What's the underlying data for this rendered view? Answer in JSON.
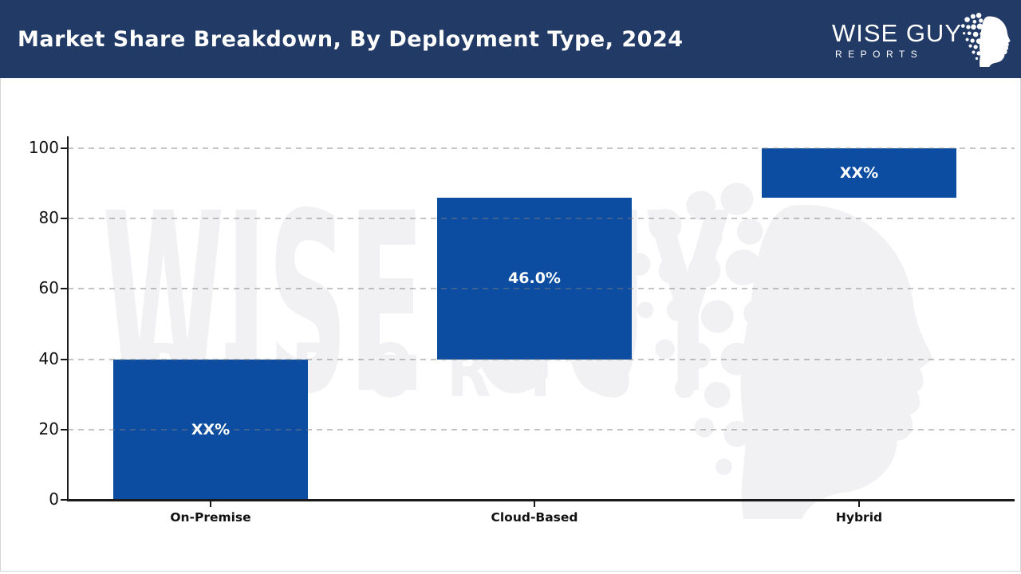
{
  "header": {
    "title": "Market Share Breakdown, By Deployment Type, 2024",
    "logo": {
      "line1": "WISE GUY",
      "line2": "REPORTS"
    }
  },
  "watermark": {
    "line1": "WISE GUY",
    "line2": "REPORTS"
  },
  "colors": {
    "header_bg": "#223a66",
    "bar_fill": "#0c4da1",
    "bar_label_text": "#ffffff",
    "axis": "#1a1a1a",
    "gridline": "#c9c9c9",
    "watermark": "#f1f1f4"
  },
  "chart_data": {
    "type": "bar",
    "subtype": "segmented-waterfall",
    "title": "Market Share Breakdown, By Deployment Type, 2024",
    "categories": [
      "On-Premise",
      "Cloud-Based",
      "Hybrid"
    ],
    "series": [
      {
        "name": "Market Share (%)",
        "segments": [
          {
            "category": "On-Premise",
            "start": 0,
            "end": 40,
            "value": 40,
            "label": "XX%"
          },
          {
            "category": "Cloud-Based",
            "start": 40,
            "end": 86,
            "value": 46,
            "label": "46.0%"
          },
          {
            "category": "Hybrid",
            "start": 86,
            "end": 100,
            "value": 14,
            "label": "XX%"
          }
        ]
      }
    ],
    "data_labels": [
      "XX%",
      "46.0%",
      "XX%"
    ],
    "xlabel": "",
    "ylabel": "",
    "y_ticks": [
      0,
      20,
      40,
      60,
      80,
      100
    ],
    "ylim": [
      0,
      105
    ],
    "grid": "horizontal dashed",
    "legend_position": "none"
  }
}
